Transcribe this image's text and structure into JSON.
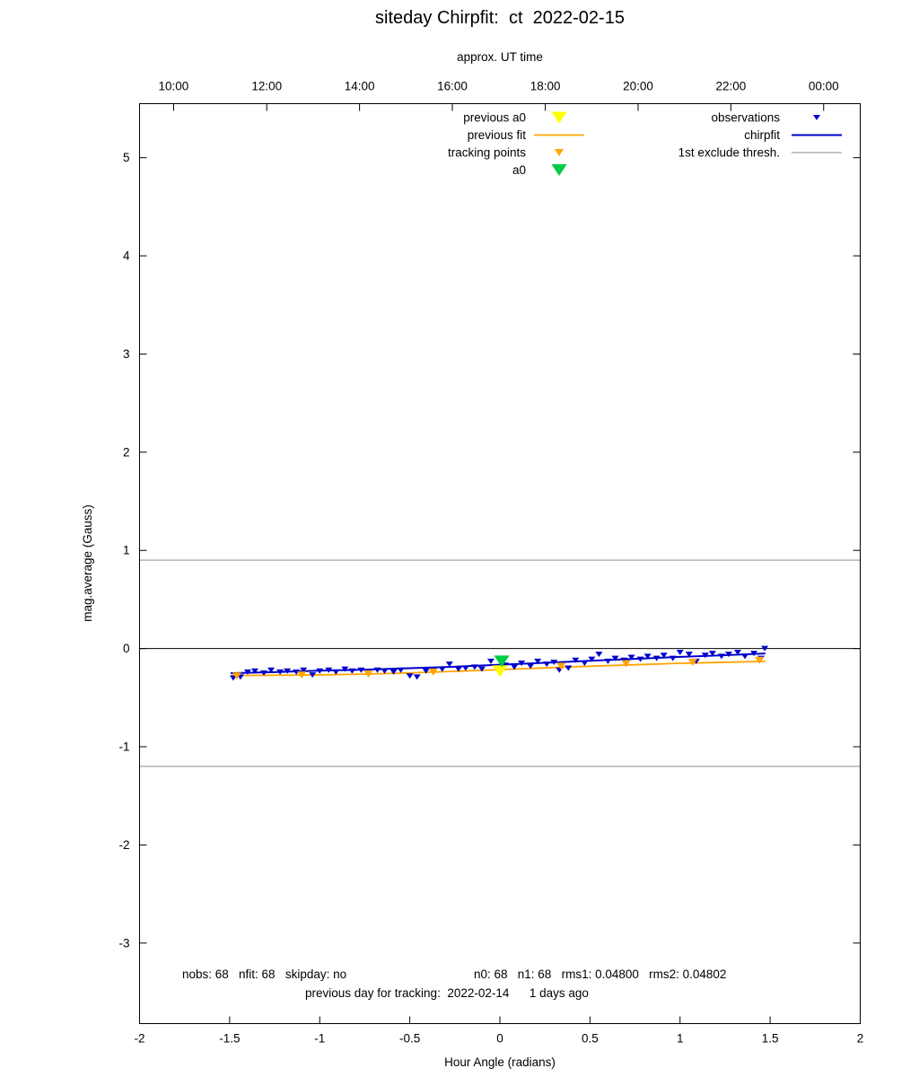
{
  "title": "siteday Chirpfit:  ct  2022-02-15",
  "top_axis_label": "approx. UT time",
  "x_axis_label": "Hour Angle (radians)",
  "y_axis_label": "mag.average (Gauss)",
  "stats": {
    "line1_left": "nobs: 68   nfit: 68   skipday: no",
    "line1_right": "n0: 68   n1: 68   rms1: 0.04800   rms2: 0.04802",
    "line2": "previous day for tracking:  2022-02-14      1 days ago"
  },
  "legend": {
    "left_column": [
      {
        "label": "previous a0",
        "symbol": "triangle",
        "size": "large",
        "color": "#ffff00"
      },
      {
        "label": "previous fit",
        "symbol": "line",
        "lw": 1.8,
        "color": "#ffa500"
      },
      {
        "label": "tracking points",
        "symbol": "triangle",
        "size": "medium",
        "color": "#ffa500"
      },
      {
        "label": "a0",
        "symbol": "triangle",
        "size": "large",
        "color": "#00cc44"
      }
    ],
    "right_column": [
      {
        "label": "observations",
        "symbol": "triangle",
        "size": "small",
        "color": "#0000cd"
      },
      {
        "label": "chirpfit",
        "symbol": "line",
        "lw": 2,
        "color": "#0000cd"
      },
      {
        "label": "1st exclude thresh.",
        "symbol": "line",
        "lw": 1.5,
        "color": "#b3b3b3"
      }
    ]
  },
  "chart_data": {
    "type": "scatter",
    "title": "siteday Chirpfit:  ct  2022-02-15",
    "xlabel": "Hour Angle (radians)",
    "ylabel": "mag.average (Gauss)",
    "x2label": "approx. UT time",
    "xlim": [
      -2,
      2
    ],
    "ylim": [
      -3.82,
      5.55
    ],
    "grid": false,
    "zero_line": 0.0,
    "exclude_thresholds": [
      0.9,
      -1.2
    ],
    "threshold_color": "#b3b3b3",
    "x_ticks": [
      {
        "v": -2,
        "label": "-2"
      },
      {
        "v": -1.5,
        "label": "-1.5"
      },
      {
        "v": -1,
        "label": "-1"
      },
      {
        "v": -0.5,
        "label": "-0.5"
      },
      {
        "v": 0,
        "label": "0"
      },
      {
        "v": 0.5,
        "label": "0.5"
      },
      {
        "v": 1,
        "label": "1"
      },
      {
        "v": 1.5,
        "label": "1.5"
      },
      {
        "v": 2,
        "label": "2"
      }
    ],
    "y_ticks": [
      {
        "v": 5,
        "label": "5"
      },
      {
        "v": 4,
        "label": "4"
      },
      {
        "v": 3,
        "label": "3"
      },
      {
        "v": 2,
        "label": "2"
      },
      {
        "v": 1,
        "label": "1"
      },
      {
        "v": 0,
        "label": "0"
      },
      {
        "v": -1,
        "label": "-1"
      },
      {
        "v": -2,
        "label": "-2"
      },
      {
        "v": -3,
        "label": "-3"
      }
    ],
    "ut_ticks": [
      {
        "v": -1.811,
        "label": "10:00"
      },
      {
        "v": -1.294,
        "label": "12:00"
      },
      {
        "v": -0.779,
        "label": "14:00"
      },
      {
        "v": -0.264,
        "label": "16:00"
      },
      {
        "v": 0.252,
        "label": "18:00"
      },
      {
        "v": 0.767,
        "label": "20:00"
      },
      {
        "v": 1.282,
        "label": "22:00"
      },
      {
        "v": 1.797,
        "label": "00:00"
      }
    ],
    "series": [
      {
        "name": "previous fit",
        "kind": "line",
        "color": "#ffa500",
        "lw": 1.8,
        "points": [
          [
            -1.49,
            -0.275
          ],
          [
            -1.25,
            -0.272
          ],
          [
            -1.0,
            -0.268
          ],
          [
            -0.75,
            -0.26
          ],
          [
            -0.5,
            -0.248
          ],
          [
            -0.25,
            -0.232
          ],
          [
            0,
            -0.215
          ],
          [
            0.25,
            -0.197
          ],
          [
            0.5,
            -0.18
          ],
          [
            0.75,
            -0.165
          ],
          [
            1.0,
            -0.15
          ],
          [
            1.25,
            -0.14
          ],
          [
            1.47,
            -0.13
          ]
        ]
      },
      {
        "name": "chirpfit",
        "kind": "line",
        "color": "#0000cd",
        "lw": 2,
        "points": [
          [
            -1.49,
            -0.25
          ],
          [
            -1.25,
            -0.24
          ],
          [
            -1.0,
            -0.225
          ],
          [
            -0.75,
            -0.215
          ],
          [
            -0.5,
            -0.2
          ],
          [
            -0.25,
            -0.185
          ],
          [
            0,
            -0.165
          ],
          [
            0.25,
            -0.145
          ],
          [
            0.5,
            -0.125
          ],
          [
            0.75,
            -0.105
          ],
          [
            1.0,
            -0.085
          ],
          [
            1.25,
            -0.068
          ],
          [
            1.47,
            -0.05
          ]
        ]
      },
      {
        "name": "observations",
        "kind": "scatter",
        "marker": "triangle-down",
        "size": "small",
        "color": "#0000cd",
        "points": [
          [
            -1.48,
            -0.3
          ],
          [
            -1.44,
            -0.29
          ],
          [
            -1.4,
            -0.24
          ],
          [
            -1.36,
            -0.23
          ],
          [
            -1.31,
            -0.25
          ],
          [
            -1.27,
            -0.22
          ],
          [
            -1.22,
            -0.24
          ],
          [
            -1.18,
            -0.23
          ],
          [
            -1.13,
            -0.24
          ],
          [
            -1.09,
            -0.22
          ],
          [
            -1.04,
            -0.27
          ],
          [
            -1.0,
            -0.23
          ],
          [
            -0.95,
            -0.22
          ],
          [
            -0.91,
            -0.24
          ],
          [
            -0.86,
            -0.21
          ],
          [
            -0.82,
            -0.23
          ],
          [
            -0.77,
            -0.22
          ],
          [
            -0.73,
            -0.26
          ],
          [
            -0.68,
            -0.22
          ],
          [
            -0.64,
            -0.23
          ],
          [
            -0.59,
            -0.24
          ],
          [
            -0.55,
            -0.22
          ],
          [
            -0.5,
            -0.28
          ],
          [
            -0.46,
            -0.29
          ],
          [
            -0.41,
            -0.23
          ],
          [
            -0.37,
            -0.22
          ],
          [
            -0.32,
            -0.21
          ],
          [
            -0.28,
            -0.16
          ],
          [
            -0.23,
            -0.21
          ],
          [
            -0.19,
            -0.2
          ],
          [
            -0.14,
            -0.19
          ],
          [
            -0.1,
            -0.21
          ],
          [
            -0.05,
            -0.13
          ],
          [
            -0.01,
            -0.2
          ],
          [
            0.03,
            -0.17
          ],
          [
            0.08,
            -0.19
          ],
          [
            0.12,
            -0.15
          ],
          [
            0.17,
            -0.18
          ],
          [
            0.21,
            -0.13
          ],
          [
            0.26,
            -0.16
          ],
          [
            0.3,
            -0.14
          ],
          [
            0.33,
            -0.22
          ],
          [
            0.38,
            -0.2
          ],
          [
            0.42,
            -0.12
          ],
          [
            0.47,
            -0.15
          ],
          [
            0.51,
            -0.11
          ],
          [
            0.55,
            -0.06
          ],
          [
            0.6,
            -0.13
          ],
          [
            0.64,
            -0.1
          ],
          [
            0.69,
            -0.12
          ],
          [
            0.73,
            -0.09
          ],
          [
            0.78,
            -0.11
          ],
          [
            0.82,
            -0.08
          ],
          [
            0.87,
            -0.1
          ],
          [
            0.91,
            -0.07
          ],
          [
            0.96,
            -0.1
          ],
          [
            1.0,
            -0.04
          ],
          [
            1.05,
            -0.06
          ],
          [
            1.09,
            -0.13
          ],
          [
            1.14,
            -0.07
          ],
          [
            1.18,
            -0.05
          ],
          [
            1.23,
            -0.08
          ],
          [
            1.27,
            -0.06
          ],
          [
            1.32,
            -0.04
          ],
          [
            1.36,
            -0.08
          ],
          [
            1.41,
            -0.05
          ],
          [
            1.45,
            -0.1
          ],
          [
            1.47,
            0.0
          ]
        ]
      },
      {
        "name": "tracking points",
        "kind": "scatter",
        "marker": "triangle-down",
        "size": "medium",
        "color": "#ffa500",
        "points": [
          [
            -1.46,
            -0.28
          ],
          [
            -1.1,
            -0.27
          ],
          [
            -0.73,
            -0.26
          ],
          [
            -0.37,
            -0.24
          ],
          [
            0.0,
            -0.21
          ],
          [
            0.34,
            -0.18
          ],
          [
            0.7,
            -0.155
          ],
          [
            1.07,
            -0.14
          ],
          [
            1.44,
            -0.12
          ]
        ]
      },
      {
        "name": "previous a0",
        "kind": "scatter",
        "marker": "triangle-down",
        "size": "large",
        "color": "#ffff00",
        "points": [
          [
            0.0,
            -0.23
          ]
        ]
      },
      {
        "name": "a0",
        "kind": "scatter",
        "marker": "triangle-down",
        "size": "large",
        "color": "#00cc44",
        "points": [
          [
            0.01,
            -0.13
          ]
        ]
      }
    ]
  }
}
